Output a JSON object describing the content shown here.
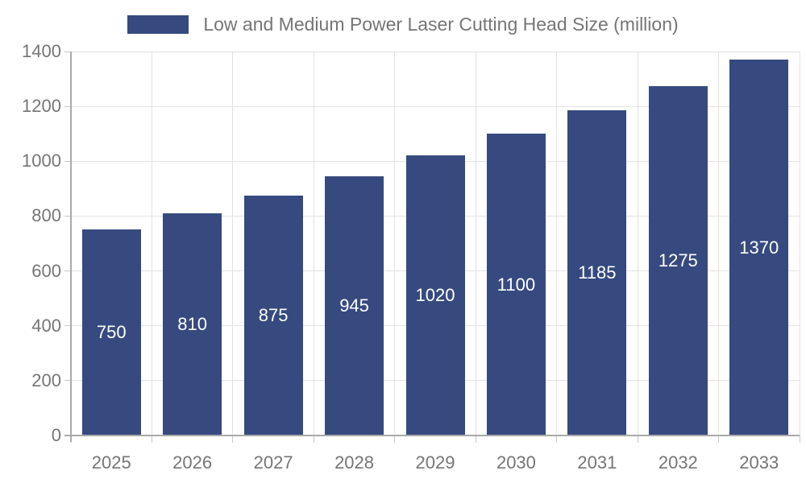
{
  "legend": {
    "label": "Low and Medium Power Laser Cutting Head Size (million)",
    "swatch_color": "#364A7F"
  },
  "chart_data": {
    "type": "bar",
    "title": "Low and Medium Power Laser Cutting Head Size (million)",
    "categories": [
      "2025",
      "2026",
      "2027",
      "2028",
      "2029",
      "2030",
      "2031",
      "2032",
      "2033"
    ],
    "values": [
      750,
      810,
      875,
      945,
      1020,
      1100,
      1185,
      1275,
      1370
    ],
    "xlabel": "",
    "ylabel": "",
    "ylim": [
      0,
      1400
    ],
    "yticks": [
      0,
      200,
      400,
      600,
      800,
      1000,
      1200,
      1400
    ],
    "grid": true,
    "legend_position": "top-center",
    "value_label_position": "inside-center",
    "colors": {
      "bar": "#364A7F",
      "value_label": "#FFFFFF",
      "axis_text": "#757575",
      "gridline": "#E2E2E2",
      "spine": "#A9A9A9"
    }
  }
}
